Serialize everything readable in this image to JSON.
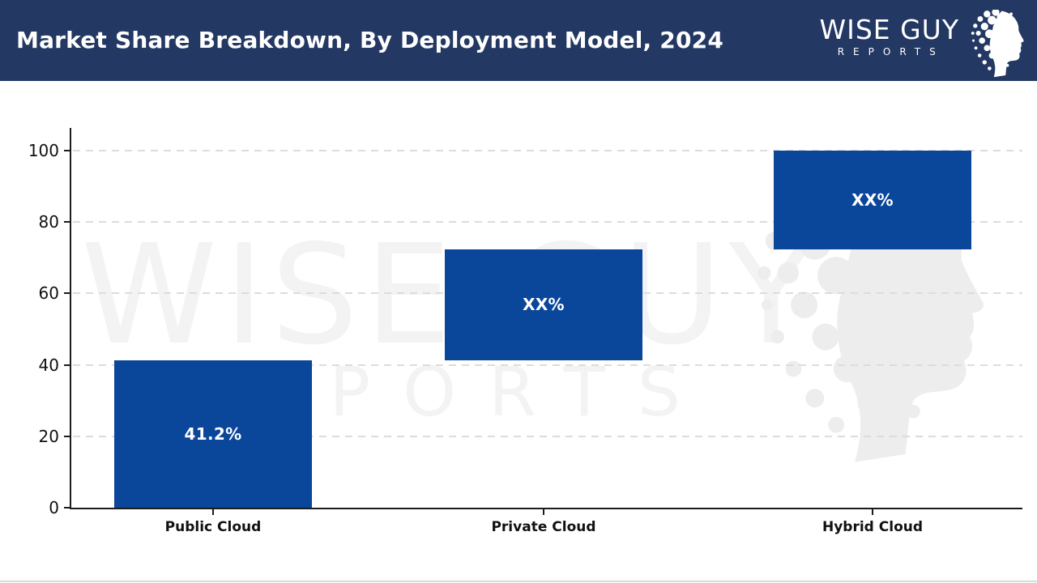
{
  "header": {
    "title": "Market Share Breakdown, By Deployment Model, 2024",
    "background_color": "#233863",
    "logo": {
      "wordmark": "WISE GUY",
      "subtext": "REPORTS"
    }
  },
  "watermark": {
    "wordmark": "WISE GUY",
    "subtext": "REPORTS"
  },
  "chart_data": {
    "type": "bar",
    "subtype": "floating-stacked-waterfall",
    "title": "Market Share Breakdown, By Deployment Model, 2024",
    "categories": [
      "Public Cloud",
      "Private Cloud",
      "Hybrid Cloud"
    ],
    "bars": [
      {
        "category": "Public Cloud",
        "start": 0,
        "end": 41.2,
        "label": "41.2%"
      },
      {
        "category": "Private Cloud",
        "start": 41.2,
        "end": 72.4,
        "label": "XX%"
      },
      {
        "category": "Hybrid Cloud",
        "start": 72.4,
        "end": 100,
        "label": "XX%"
      }
    ],
    "yticks": [
      0,
      20,
      40,
      60,
      80,
      100
    ],
    "ylim": [
      0,
      106
    ],
    "xlabel": "",
    "ylabel": "",
    "grid": "horizontal-dashed",
    "legend": "none",
    "bar_color": "#0a4699",
    "bar_label_color": "#ffffff",
    "axis_color": "#1c1c1c",
    "grid_color": "#dcdcdc"
  }
}
